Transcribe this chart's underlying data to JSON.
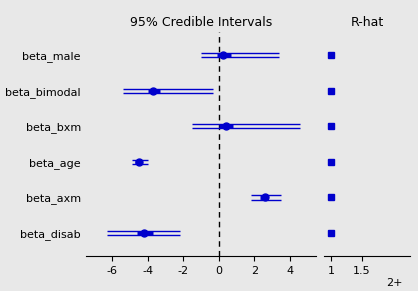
{
  "title": "95% Credible Intervals",
  "rhat_title": "R-hat",
  "params": [
    "beta_male",
    "beta_bimodal",
    "beta_bxm",
    "beta_age",
    "beta_axm",
    "beta_disab"
  ],
  "means": [
    0.25,
    -3.7,
    0.4,
    -4.5,
    2.6,
    -4.2
  ],
  "hdi_inner_low": [
    -0.1,
    -4.0,
    0.0,
    -4.7,
    2.3,
    -4.6
  ],
  "hdi_inner_high": [
    0.7,
    -3.3,
    0.8,
    -4.3,
    2.8,
    -3.7
  ],
  "hdi_outer_low": [
    -1.0,
    -5.4,
    -1.5,
    -4.9,
    1.8,
    -6.3
  ],
  "hdi_outer_high": [
    3.4,
    -0.3,
    4.6,
    -4.0,
    3.5,
    -2.2
  ],
  "rhat_values": [
    1.0,
    1.0,
    1.0,
    1.0,
    1.0,
    1.0
  ],
  "xlim": [
    -7.5,
    5.5
  ],
  "xticks": [
    -6,
    -4,
    -2,
    0,
    2,
    4
  ],
  "rhat_xlim": [
    0.88,
    2.3
  ],
  "line_color": "#0000CC",
  "dot_color": "#0000CC",
  "bg_color": "#E8E8E8",
  "dashed_color": "#000000",
  "thick_lw": 3.5,
  "thin_lw": 1.0,
  "dot_size": 5
}
